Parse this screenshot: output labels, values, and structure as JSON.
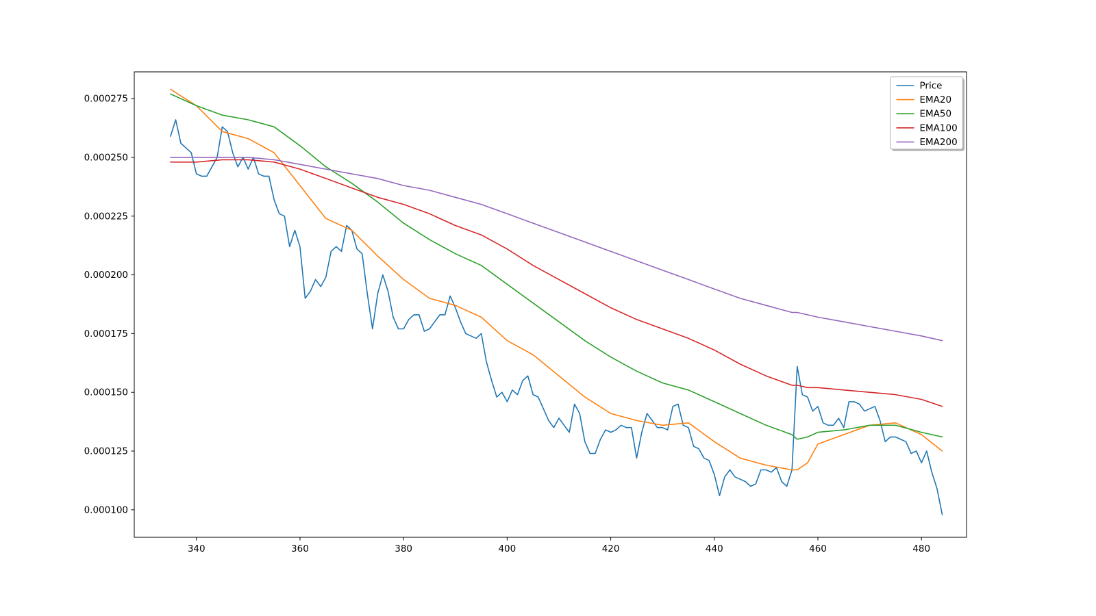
{
  "chart_data": {
    "type": "line",
    "title": "",
    "xlabel": "",
    "ylabel": "",
    "grid": false,
    "background": "#ffffff",
    "xlim": [
      328,
      488.7
    ],
    "ylim": [
      8.83e-05,
      0.0002864
    ],
    "y_scale": 1e-06,
    "x_ticks": [
      340,
      360,
      380,
      400,
      420,
      440,
      460,
      480
    ],
    "x_tick_labels": [
      "340",
      "360",
      "380",
      "400",
      "420",
      "440",
      "460",
      "480"
    ],
    "y_ticks": [
      100,
      125,
      150,
      175,
      200,
      225,
      250,
      275
    ],
    "y_tick_labels": [
      "0.000100",
      "0.000125",
      "0.000150",
      "0.000175",
      "0.000200",
      "0.000225",
      "0.000250",
      "0.000275"
    ],
    "legend": {
      "position": "upper right",
      "entries": [
        "Price",
        "EMA20",
        "EMA50",
        "EMA100",
        "EMA200"
      ]
    },
    "series": [
      {
        "name": "Price",
        "color": "#1f77b4",
        "x0": 335,
        "y": [
          259,
          266,
          256,
          254,
          252,
          243,
          242,
          242,
          246,
          250,
          263,
          261,
          252,
          246,
          250,
          245,
          250,
          243,
          242,
          242,
          232,
          226,
          225,
          212,
          219,
          212,
          190,
          193,
          198,
          195,
          199,
          210,
          212,
          210,
          221,
          219,
          211,
          209,
          192,
          177,
          192,
          200,
          193,
          182,
          177,
          177,
          181,
          183,
          183,
          176,
          177,
          180,
          183,
          183,
          191,
          186,
          180,
          175,
          174,
          173,
          175,
          163,
          155,
          148,
          150,
          146,
          151,
          149,
          155,
          157,
          149,
          148,
          143,
          138,
          135,
          139,
          136,
          133,
          145,
          141,
          129,
          124,
          124,
          130,
          134,
          133,
          134,
          136,
          135,
          135,
          122,
          133,
          141,
          138,
          135,
          135,
          134,
          144,
          145,
          136,
          135,
          127,
          126,
          122,
          121,
          115,
          106,
          114,
          117,
          114,
          113,
          112,
          110,
          111,
          117,
          117,
          116,
          118,
          112,
          110,
          117,
          161,
          149,
          148,
          142,
          144,
          137,
          136,
          136,
          139,
          135,
          146,
          146,
          145,
          142,
          143,
          144,
          138,
          129,
          131,
          131,
          130,
          129,
          124,
          125,
          120,
          125,
          116,
          109,
          98
        ]
      },
      {
        "name": "EMA20",
        "color": "#ff7f0e",
        "x": [
          335,
          340,
          345,
          350,
          355,
          360,
          365,
          370,
          375,
          380,
          385,
          390,
          395,
          400,
          405,
          410,
          415,
          420,
          425,
          430,
          435,
          440,
          445,
          450,
          455,
          456,
          458,
          460,
          465,
          470,
          475,
          480,
          484
        ],
        "y": [
          279,
          272,
          261,
          258,
          252,
          238,
          224,
          219,
          208,
          198,
          190,
          187,
          182,
          172,
          166,
          157,
          148,
          141,
          138,
          136,
          137,
          129,
          122,
          119,
          117,
          117,
          120,
          128,
          132,
          136,
          137,
          132,
          125
        ]
      },
      {
        "name": "EMA50",
        "color": "#2ca02c",
        "x": [
          335,
          340,
          345,
          350,
          355,
          360,
          365,
          370,
          375,
          380,
          385,
          390,
          395,
          400,
          405,
          410,
          415,
          420,
          425,
          430,
          435,
          440,
          445,
          450,
          455,
          456,
          458,
          460,
          465,
          470,
          475,
          480,
          484
        ],
        "y": [
          277,
          272,
          268,
          266,
          263,
          255,
          246,
          239,
          231,
          222,
          215,
          209,
          204,
          196,
          188,
          180,
          172,
          165,
          159,
          154,
          151,
          146,
          141,
          136,
          132,
          130,
          131,
          133,
          134,
          136,
          136,
          133,
          131
        ]
      },
      {
        "name": "EMA100",
        "color": "#d62728",
        "x": [
          335,
          340,
          345,
          350,
          355,
          360,
          365,
          370,
          375,
          380,
          385,
          390,
          395,
          400,
          405,
          410,
          415,
          420,
          425,
          430,
          435,
          440,
          445,
          450,
          455,
          456,
          458,
          460,
          465,
          470,
          475,
          480,
          484
        ],
        "y": [
          248,
          248,
          249,
          249,
          248,
          245,
          241,
          237,
          233,
          230,
          226,
          221,
          217,
          211,
          204,
          198,
          192,
          186,
          181,
          177,
          173,
          168,
          162,
          157,
          153,
          153,
          152,
          152,
          151,
          150,
          149,
          147,
          144
        ]
      },
      {
        "name": "EMA200",
        "color": "#9467bd",
        "x": [
          335,
          340,
          345,
          350,
          355,
          360,
          365,
          370,
          375,
          380,
          385,
          390,
          395,
          400,
          405,
          410,
          415,
          420,
          425,
          430,
          435,
          440,
          445,
          450,
          455,
          456,
          458,
          460,
          465,
          470,
          475,
          480,
          484
        ],
        "y": [
          250,
          250,
          250,
          250,
          249,
          247,
          245,
          243,
          241,
          238,
          236,
          233,
          230,
          226,
          222,
          218,
          214,
          210,
          206,
          202,
          198,
          194,
          190,
          187,
          184,
          184,
          183,
          182,
          180,
          178,
          176,
          174,
          172
        ]
      }
    ]
  }
}
